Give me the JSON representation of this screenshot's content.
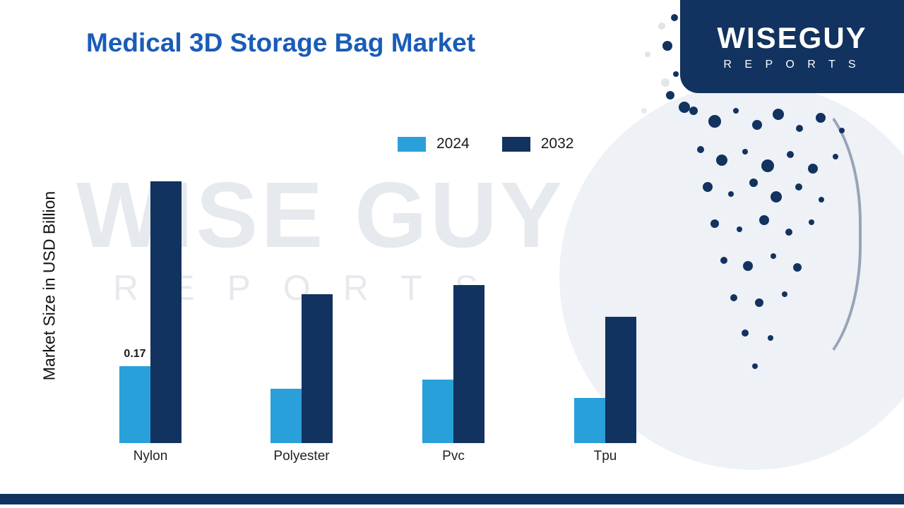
{
  "page": {
    "title": "Medical 3D Storage Bag Market"
  },
  "logo": {
    "line1": "WISEGUY",
    "line2": "R E P O R T S"
  },
  "watermark": {
    "line1": "WISE GUY",
    "line2": "REPORTS"
  },
  "colors": {
    "title_blue": "#1a5cb8",
    "series_2024": "#29a0da",
    "series_2032": "#12325f",
    "footer": "#12325f"
  },
  "chart_data": {
    "type": "bar",
    "title": "Medical 3D Storage Bag Market",
    "xlabel": "",
    "ylabel": "Market Size in USD Billion",
    "categories": [
      "Nylon",
      "Polyester",
      "Pvc",
      "Tpu"
    ],
    "series": [
      {
        "name": "2024",
        "color": "#29a0da",
        "values": [
          0.17,
          0.12,
          0.14,
          0.1
        ]
      },
      {
        "name": "2032",
        "color": "#12325f",
        "values": [
          0.58,
          0.33,
          0.35,
          0.28
        ]
      }
    ],
    "annotations": [
      {
        "category": "Nylon",
        "series": "2024",
        "text": "0.17"
      }
    ],
    "ylim": [
      0,
      0.6
    ],
    "grid": false,
    "legend_position": "top"
  }
}
